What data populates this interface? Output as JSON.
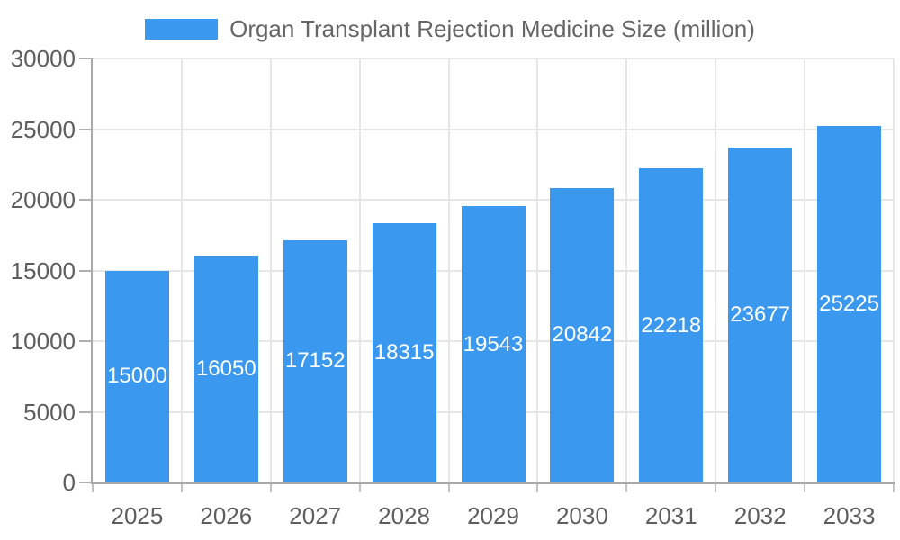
{
  "chart_data": {
    "type": "bar",
    "title": "Organ Transplant Rejection Medicine Size (million)",
    "categories": [
      "2025",
      "2026",
      "2027",
      "2028",
      "2029",
      "2030",
      "2031",
      "2032",
      "2033"
    ],
    "values": [
      15000,
      16050,
      17152,
      18315,
      19543,
      20842,
      22218,
      23677,
      25225
    ],
    "series": [
      {
        "name": "Organ Transplant Rejection Medicine Size (million)",
        "values": [
          15000,
          16050,
          17152,
          18315,
          19543,
          20842,
          22218,
          23677,
          25225
        ]
      }
    ],
    "xlabel": "",
    "ylabel": "",
    "ylim": [
      0,
      30000
    ],
    "yticks": [
      0,
      5000,
      10000,
      15000,
      20000,
      25000,
      30000
    ],
    "grid": true,
    "legend_position": "top",
    "bar_labels_visible": true
  },
  "legend": {
    "label": "Organ Transplant Rejection Medicine Size (million)"
  },
  "colors": {
    "bar": "#3a99ee",
    "bar_label_text": "#ffffff",
    "grid_line": "#e6e6e6",
    "axis_line": "#a8a8a8",
    "tick_label_text": "#5e5e5e",
    "legend_text": "#666666",
    "background": "#ffffff"
  }
}
